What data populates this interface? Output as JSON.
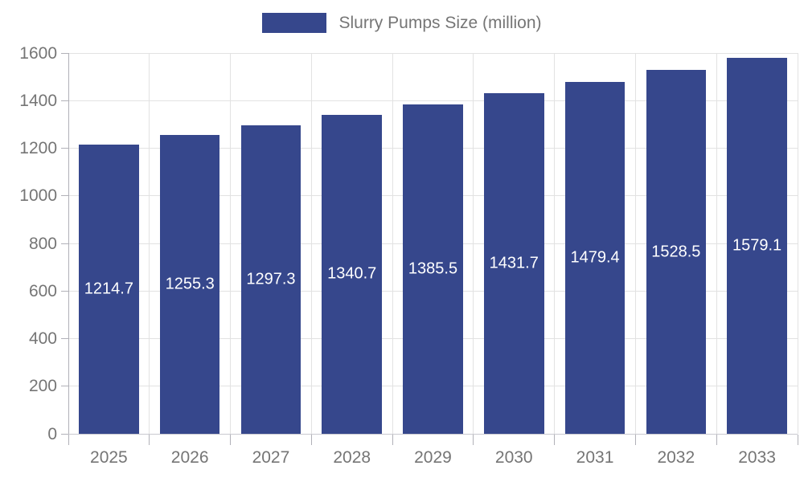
{
  "chart_data": {
    "type": "bar",
    "title": "Slurry Pumps Size (million)",
    "legend_position": "top",
    "categories": [
      "2025",
      "2026",
      "2027",
      "2028",
      "2029",
      "2030",
      "2031",
      "2032",
      "2033"
    ],
    "values": [
      1214.7,
      1255.3,
      1297.3,
      1340.7,
      1385.5,
      1431.7,
      1479.4,
      1528.5,
      1579.1
    ],
    "value_labels": [
      "1214.7",
      "1255.3",
      "1297.3",
      "1340.7",
      "1385.5",
      "1431.7",
      "1479.4",
      "1528.5",
      "1579.1"
    ],
    "ylim": [
      0,
      1600
    ],
    "ytick_step": 200,
    "ytick_labels": [
      "0",
      "200",
      "400",
      "600",
      "800",
      "1000",
      "1200",
      "1400",
      "1600"
    ],
    "grid": "on",
    "colors": {
      "bar": "#36478C",
      "bar_value_text": "#ffffff",
      "axis_text": "#757575",
      "gridline": "#e2e2e2",
      "axis_line": "#b1b1b8"
    }
  }
}
